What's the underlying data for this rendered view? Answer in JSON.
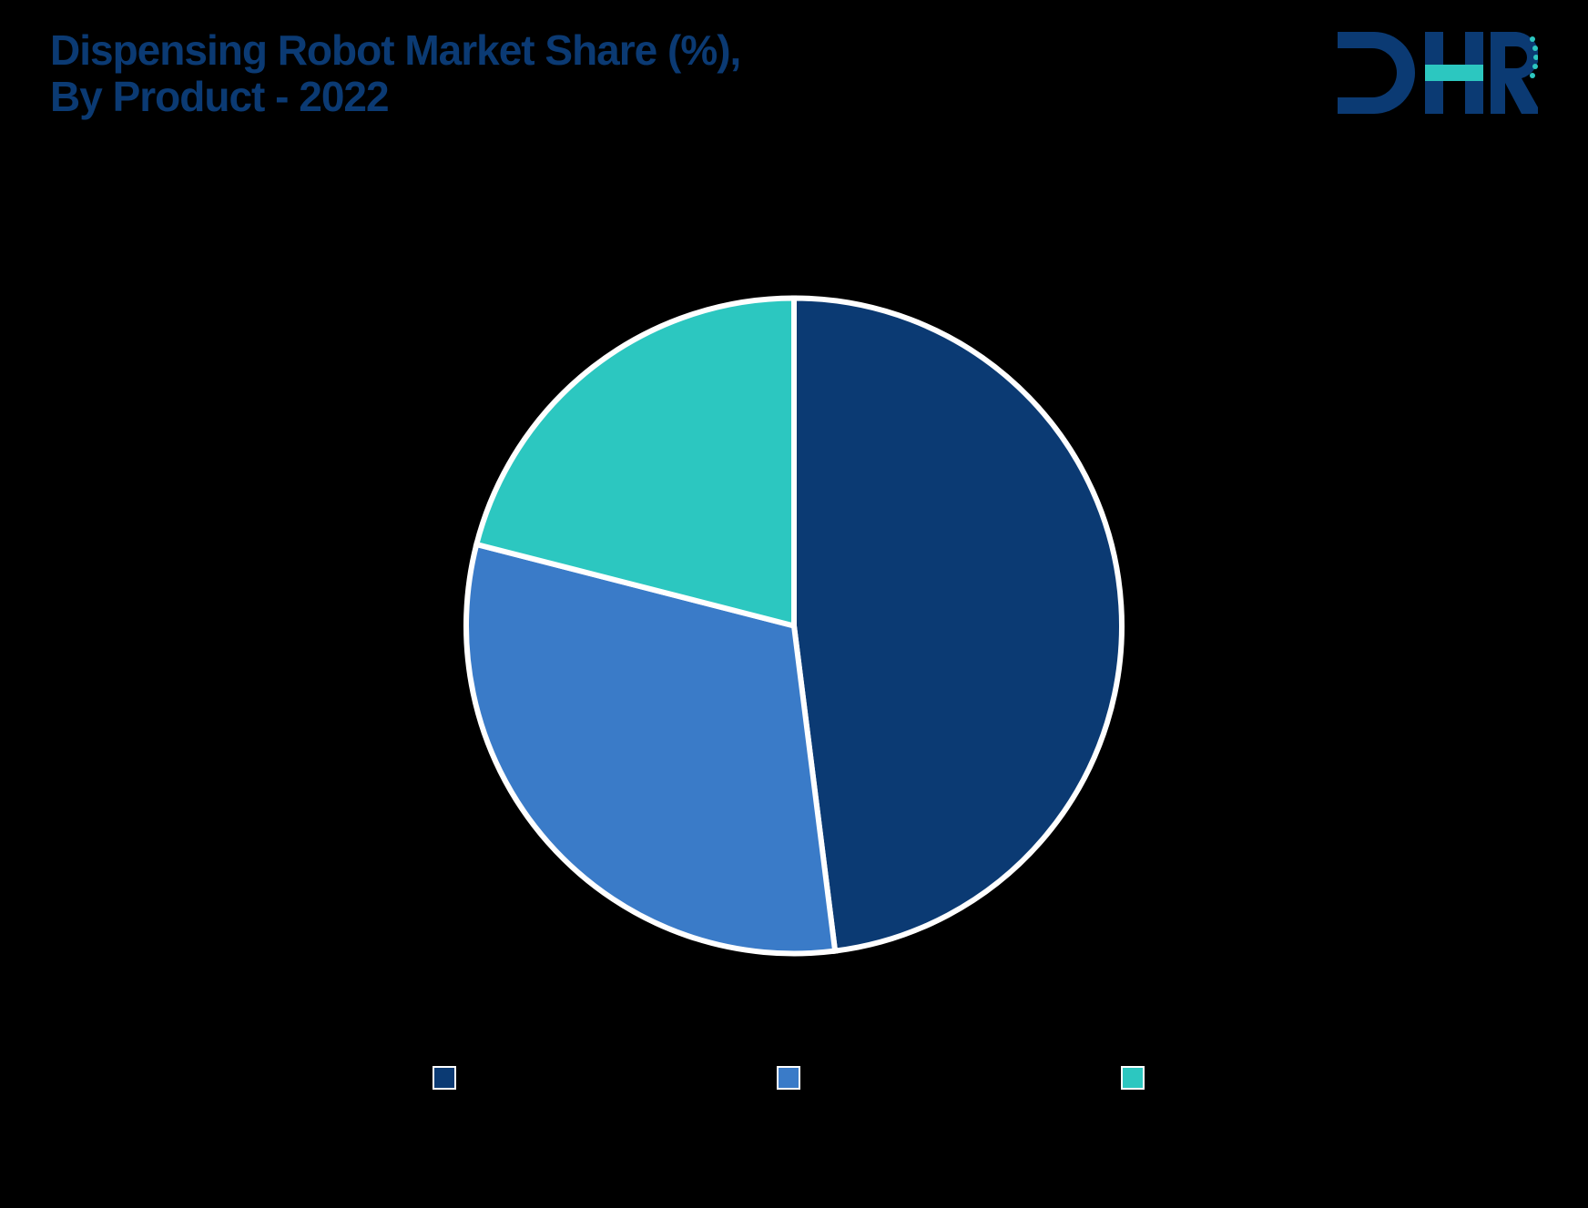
{
  "title": {
    "line1": "Dispensing Robot Market Share (%),",
    "line2": "By Product - 2022",
    "color": "#0b3a73",
    "fontsize": 46
  },
  "logo": {
    "d_color": "#0b3a73",
    "h_color": "#0b3a73",
    "r_color": "#0b3a73",
    "accent_color": "#2cc7c0"
  },
  "pie": {
    "type": "pie",
    "radius": 360,
    "stroke": "#ffffff",
    "stroke_width": 6,
    "background": "#000000",
    "slices": [
      {
        "label": "",
        "value": 48,
        "color": "#0b3a73"
      },
      {
        "label": "",
        "value": 31,
        "color": "#3a7bc8"
      },
      {
        "label": "",
        "value": 21,
        "color": "#2cc7c0"
      }
    ]
  },
  "legend": {
    "swatch_border": "#ffffff",
    "items": [
      {
        "label": "",
        "color": "#0b3a73"
      },
      {
        "label": "",
        "color": "#3a7bc8"
      },
      {
        "label": "",
        "color": "#2cc7c0"
      }
    ]
  },
  "source": ""
}
